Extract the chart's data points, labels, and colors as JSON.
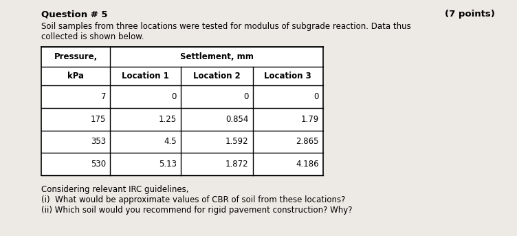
{
  "title": "Question # 5",
  "points": "(7 points)",
  "intro_line1": "Soil samples from three locations were tested for modulus of subgrade reaction. Data thus",
  "intro_line2": "collected is shown below.",
  "table": {
    "header1_col0": "Pressure,",
    "header1_col123": "Settlement, mm",
    "header2": [
      "kPa",
      "Location 1",
      "Location 2",
      "Location 3"
    ],
    "rows": [
      [
        "7",
        "0",
        "0",
        "0"
      ],
      [
        "175",
        "1.25",
        "0.854",
        "1.79"
      ],
      [
        "353",
        "4.5",
        "1.592",
        "2.865"
      ],
      [
        "530",
        "5.13",
        "1.872",
        "4.186"
      ]
    ]
  },
  "footer_line1": "Considering relevant IRC guidelines,",
  "footer_line2": "(i)  What would be approximate values of CBR of soil from these locations?",
  "footer_line3": "(ii) Which soil would you recommend for rigid pavement construction? Why?",
  "bg_color": "#edeae5",
  "text_color": "#000000",
  "font_size_title": 9.5,
  "font_size_body": 8.5,
  "font_size_table": 8.5
}
